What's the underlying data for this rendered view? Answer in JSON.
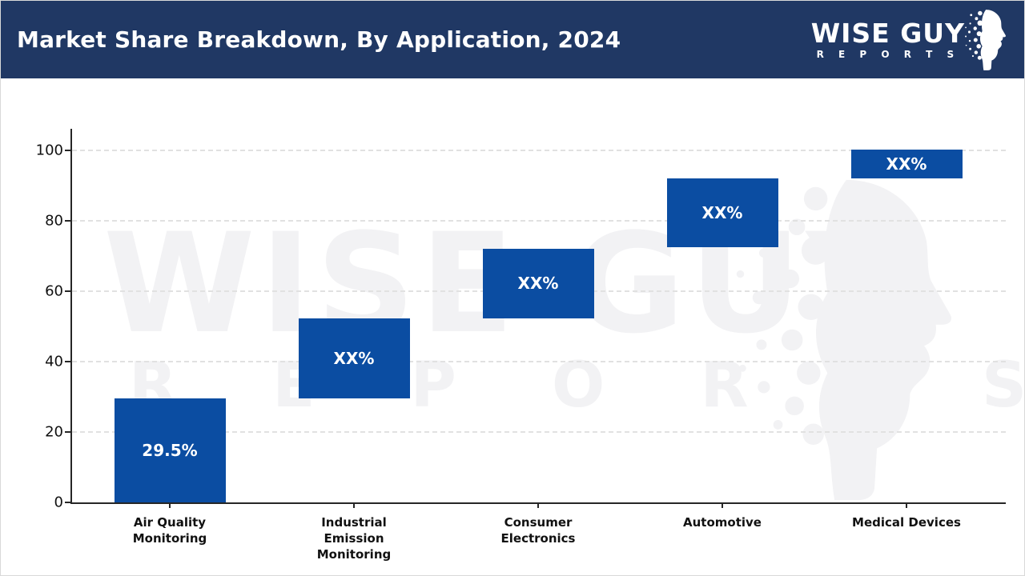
{
  "header": {
    "title": "Market Share Breakdown, By Application, 2024",
    "logo": {
      "name": "WISE GUY",
      "tagline": "R E P O R T S"
    }
  },
  "watermark": {
    "name": "WISE GUY",
    "tagline": "R E P O R T S"
  },
  "colors": {
    "header_bg": "#203864",
    "bar": "#0B4DA2",
    "bar_label": "#FFFFFF",
    "axis": "#262626",
    "grid": "#E1E1E1",
    "watermark": "#F2F2F4"
  },
  "chart_data": {
    "type": "bar",
    "subtype": "floating-waterfall",
    "title": "Market Share Breakdown, By Application, 2024",
    "categories": [
      "Air Quality\nMonitoring",
      "Industrial\nEmission\nMonitoring",
      "Consumer\nElectronics",
      "Automotive",
      "Medical Devices"
    ],
    "segments": [
      {
        "category": "Air Quality Monitoring",
        "start": 0,
        "end": 29.5,
        "label": "29.5%"
      },
      {
        "category": "Industrial Emission Monitoring",
        "start": 29.5,
        "end": 52.3,
        "label": "XX%"
      },
      {
        "category": "Consumer Electronics",
        "start": 52.3,
        "end": 72.1,
        "label": "XX%"
      },
      {
        "category": "Automotive",
        "start": 72.5,
        "end": 92.1,
        "label": "XX%"
      },
      {
        "category": "Medical Devices",
        "start": 92.0,
        "end": 100.3,
        "label": "XX%"
      }
    ],
    "xlabel": "",
    "ylabel": "",
    "ylim": [
      0,
      100
    ],
    "yticks": [
      0,
      20,
      40,
      60,
      80,
      100
    ],
    "grid": "horizontal-dashed",
    "legend": "none",
    "bar_color": "#0B4DA2",
    "label_color": "#FFFFFF"
  }
}
